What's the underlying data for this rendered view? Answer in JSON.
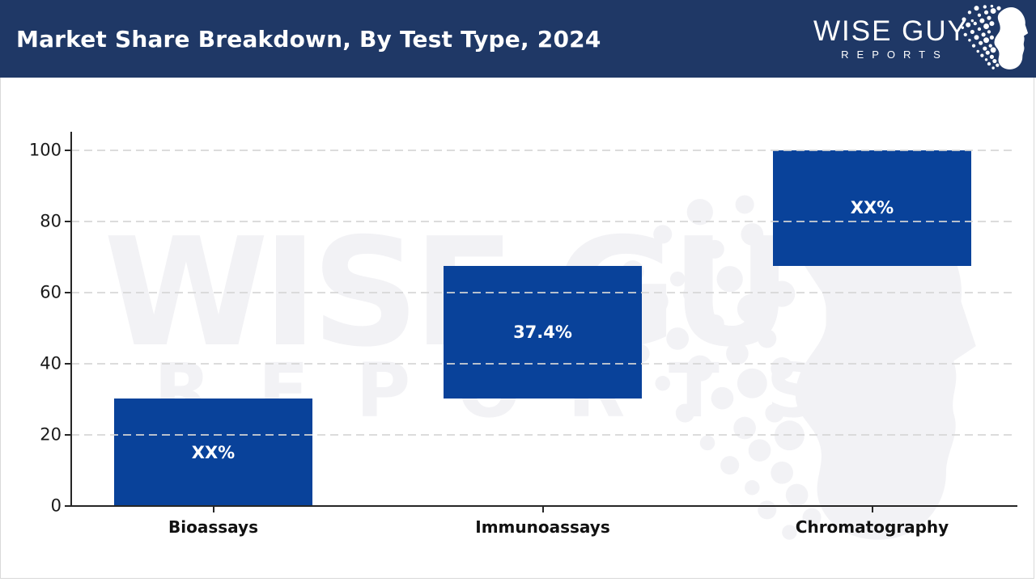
{
  "header": {
    "title": "Market Share Breakdown, By Test Type, 2024",
    "logo": {
      "line1": "WISE GUY",
      "line2": "REPORTS"
    }
  },
  "watermark": {
    "line1": "WISE GUY",
    "line2": "REPORTS"
  },
  "chart_data": {
    "type": "bar",
    "subtype": "waterfall",
    "title": "Market Share Breakdown, By Test Type, 2024",
    "categories": [
      "Bioassays",
      "Immunoassays",
      "Chromatography"
    ],
    "bars": [
      {
        "category": "Bioassays",
        "start": 0,
        "end": 30.2,
        "value": 30.2,
        "label": "XX%"
      },
      {
        "category": "Immunoassays",
        "start": 30.2,
        "end": 67.6,
        "value": 37.4,
        "label": "37.4%"
      },
      {
        "category": "Chromatography",
        "start": 67.6,
        "end": 100,
        "value": 32.4,
        "label": "XX%"
      }
    ],
    "xlabel": "",
    "ylabel": "",
    "y_ticks": [
      0,
      20,
      40,
      60,
      80,
      100
    ],
    "ylim": [
      0,
      105
    ],
    "grid": "horizontal-dashed",
    "legend": "none",
    "colors": {
      "bar": "#09429a",
      "header_bg": "#1f3866",
      "grid": "#d6d6d6",
      "axis": "#262626",
      "tick_text": "#1a1a1a",
      "bar_label_text": "#ffffff",
      "watermark": "#f2f2f5"
    }
  }
}
